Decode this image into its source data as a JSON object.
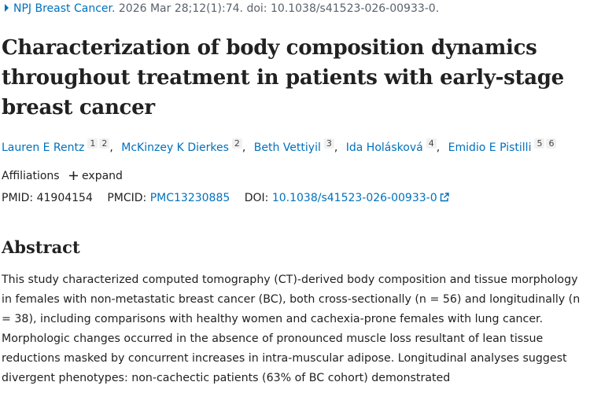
{
  "citation": {
    "journal": "NPJ Breast Cancer.",
    "details": "2026 Mar 28;12(1):74. doi: 10.1038/s41523-026-00933-0."
  },
  "title": "Characterization of body composition dynamics throughout treatment in patients with early-stage breast cancer",
  "authors": [
    {
      "name": "Lauren E Rentz",
      "affiliations": [
        "1",
        "2"
      ]
    },
    {
      "name": "McKinzey K Dierkes",
      "affiliations": [
        "2"
      ]
    },
    {
      "name": "Beth Vettiyil",
      "affiliations": [
        "3"
      ]
    },
    {
      "name": "Ida Holásková",
      "affiliations": [
        "4"
      ]
    },
    {
      "name": "Emidio E Pistilli",
      "affiliations": [
        "5",
        "6"
      ]
    }
  ],
  "affiliations": {
    "label": "Affiliations",
    "toggle": "expand"
  },
  "identifiers": {
    "pmid": {
      "label": "PMID:",
      "value": "41904154"
    },
    "pmcid": {
      "label": "PMCID:",
      "value": "PMC13230885"
    },
    "doi": {
      "label": "DOI:",
      "value": "10.1038/s41523-026-00933-0"
    }
  },
  "abstract": {
    "heading": "Abstract",
    "text": "This study characterized computed tomography (CT)-derived body composition and tissue morphology in females with non-metastatic breast cancer (BC), both cross-sectionally (n = 56) and longitudinally (n = 38), including comparisons with healthy women and cachexia-prone females with lung cancer. Morphologic changes occurred in the absence of pronounced muscle loss resultant of lean tissue reductions masked by concurrent increases in intra-muscular adipose. Longitudinal analyses suggest divergent phenotypes: non-cachectic patients (63% of BC cohort) demonstrated"
  }
}
